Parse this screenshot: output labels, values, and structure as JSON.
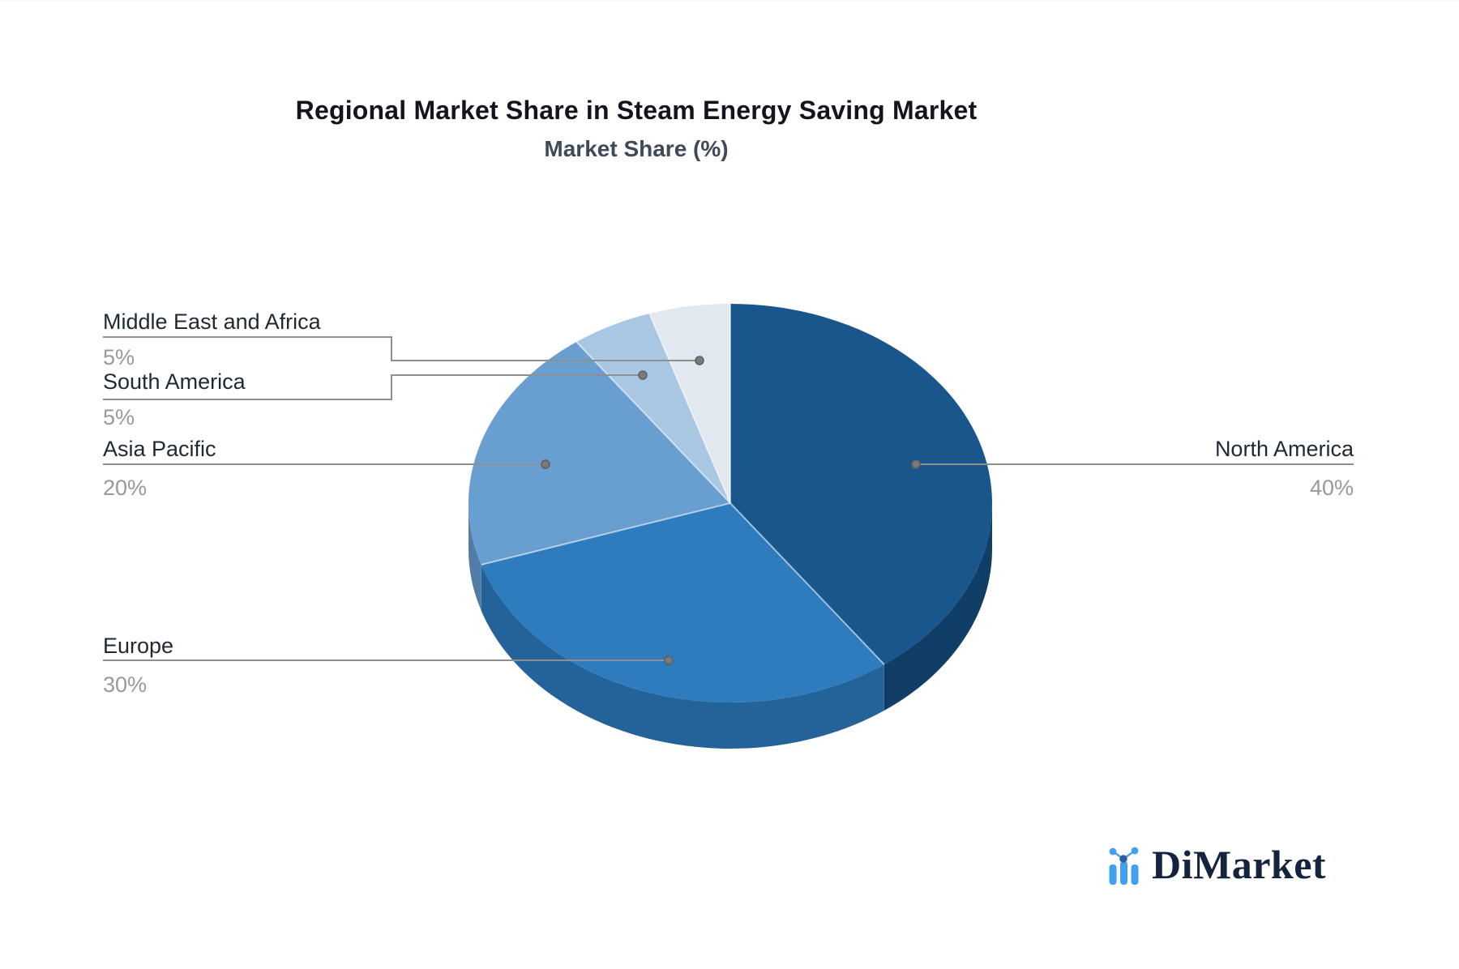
{
  "title": "Regional Market Share in Steam Energy Saving Market",
  "subtitle": "Market Share (%)",
  "chart_data": {
    "type": "pie",
    "style": "3d",
    "title": "Regional Market Share in Steam Energy Saving Market",
    "subtitle": "Market Share (%)",
    "unit": "%",
    "start_angle_deg": 0,
    "direction": "clockwise",
    "slices": [
      {
        "label": "North America",
        "value": 40,
        "display": "40%",
        "color": "#19568C",
        "side_color": "#113E66"
      },
      {
        "label": "Europe",
        "value": 30,
        "display": "30%",
        "color": "#2E7CBE",
        "side_color": "#24629A"
      },
      {
        "label": "Asia Pacific",
        "value": 20,
        "display": "20%",
        "color": "#699ED1",
        "side_color": "#527CA6"
      },
      {
        "label": "South America",
        "value": 5,
        "display": "5%",
        "color": "#A9C6E3",
        "side_color": "#7F95AB"
      },
      {
        "label": "Middle East and Africa",
        "value": 5,
        "display": "5%",
        "color": "#E2E8F0",
        "side_color": "#AAB0BA"
      }
    ]
  },
  "logo": {
    "text": "DiMarket",
    "icon": "bar-chart-logo-icon",
    "accent_color": "#41A0F0",
    "dot_mid_color": "#2B5F9E",
    "text_color": "#16233E"
  },
  "colors": {
    "background": "#FFFFFF",
    "title_text": "#14141E",
    "subtitle_text": "#3E4A59",
    "label_text": "#1F2933",
    "value_text": "#97999C",
    "leader_line": "#8F8F8F",
    "leader_dot": "#7A7A7A"
  }
}
